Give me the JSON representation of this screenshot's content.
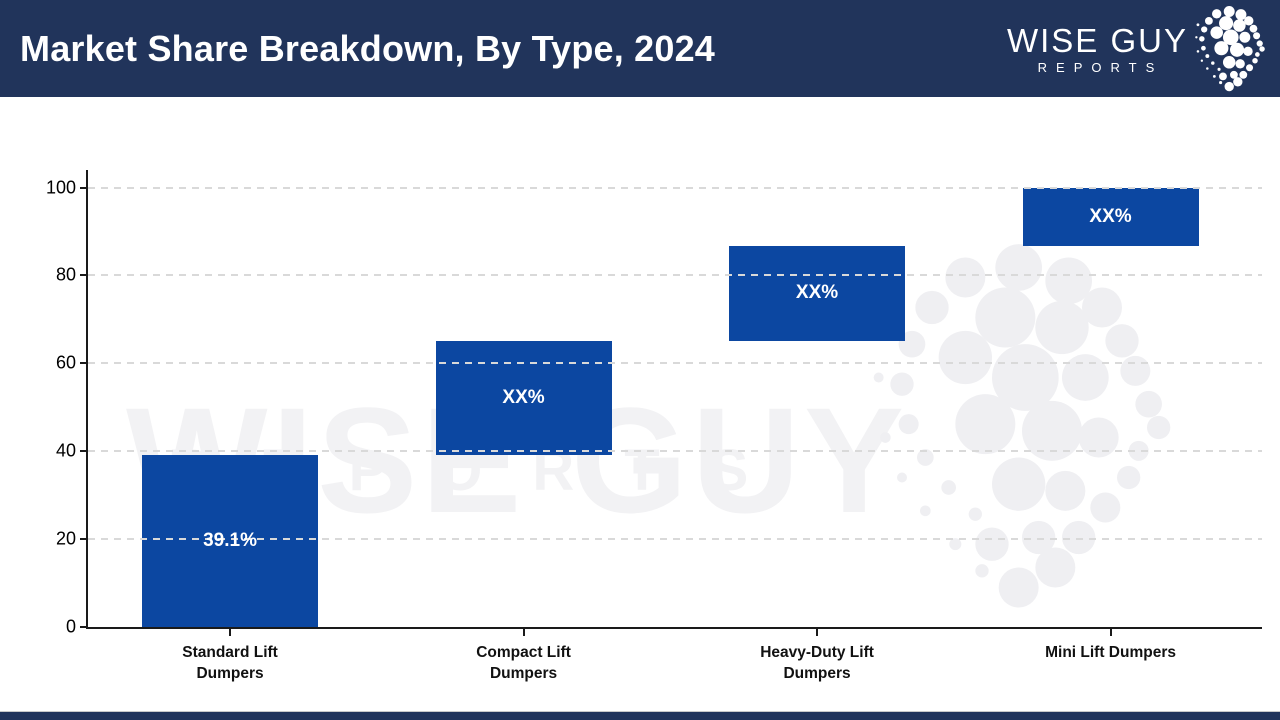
{
  "header": {
    "title": "Market Share Breakdown, By Type, 2024",
    "logo": {
      "line1": "WISE GUY",
      "line2": "REPORTS"
    }
  },
  "watermark": {
    "line1": "WISE GUY",
    "line2": "REPORTS"
  },
  "chart_data": {
    "type": "bar",
    "subtype": "stepped-waterfall-market-share",
    "title": "Market Share Breakdown, By Type, 2024",
    "unit": "%",
    "categories": [
      "Standard Lift Dumpers",
      "Compact Lift Dumpers",
      "Heavy-Duty Lift Dumpers",
      "Mini Lift Dumpers"
    ],
    "segments": [
      {
        "category": "Standard Lift Dumpers",
        "category_lines": [
          "Standard Lift",
          "Dumpers"
        ],
        "start": 0,
        "end": 39.1,
        "value": 39.1,
        "value_label": "39.1%"
      },
      {
        "category": "Compact Lift Dumpers",
        "category_lines": [
          "Compact Lift",
          "Dumpers"
        ],
        "start": 39.1,
        "end": 65.1,
        "value": 26.0,
        "value_label": "XX%"
      },
      {
        "category": "Heavy-Duty Lift Dumpers",
        "category_lines": [
          "Heavy-Duty Lift",
          "Dumpers"
        ],
        "start": 65.1,
        "end": 86.8,
        "value": 21.7,
        "value_label": "XX%"
      },
      {
        "category": "Mini Lift Dumpers",
        "category_lines": [
          "Mini Lift Dumpers"
        ],
        "start": 86.8,
        "end": 100,
        "value": 13.2,
        "value_label": "XX%"
      }
    ],
    "xlabel": "",
    "ylabel": "",
    "ylim": [
      0,
      104
    ],
    "yticks": [
      0,
      20,
      40,
      60,
      80,
      100
    ],
    "grid": "horizontal-dashed",
    "legend": "none",
    "bar_color": "#0C47A1",
    "value_label_color": "#ffffff",
    "axis_color": "#1a1a1a",
    "gridline_color": "#d9d9d9",
    "header_color": "#21345B"
  }
}
